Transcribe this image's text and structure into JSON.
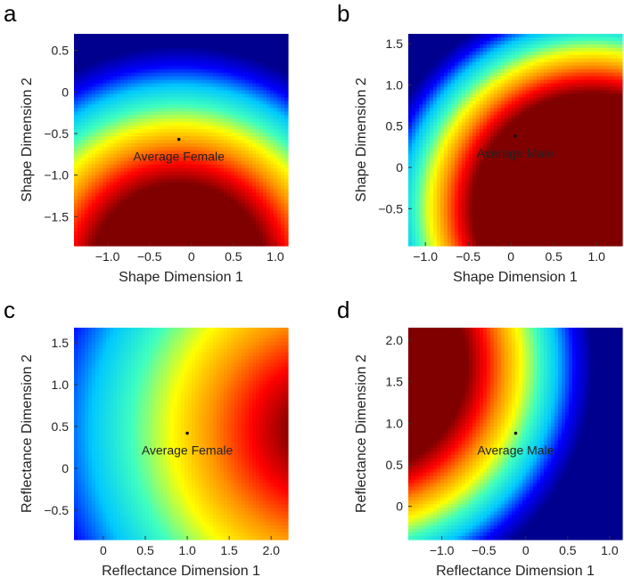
{
  "colormap": [
    "#00008f",
    "#0000ff",
    "#00c8ff",
    "#3fffbf",
    "#ffff00",
    "#ff9000",
    "#ff0000",
    "#800000"
  ],
  "chart_data": [
    {
      "type": "heatmap",
      "panel": "a",
      "xlabel": "Shape Dimension 1",
      "ylabel": "Shape Dimension 2",
      "xlim": [
        -1.4,
        1.15
      ],
      "ylim": [
        -1.85,
        0.7
      ],
      "xticks": [
        -1.0,
        -0.5,
        0,
        0.5,
        1.0
      ],
      "xtick_labels": [
        "−1.0",
        "−0.5",
        "0",
        "0.5",
        "1.0"
      ],
      "yticks": [
        0.5,
        0,
        -0.5,
        -1.0,
        -1.5
      ],
      "ytick_labels": [
        "0.5",
        "0",
        "−0.5",
        "−1.0",
        "−1.5"
      ],
      "field": {
        "center": [
          -0.15,
          -2.15
        ],
        "inner_radius": 1.05,
        "outer_radius": 2.7
      },
      "point": {
        "x": -0.15,
        "y": -0.57
      },
      "annotation": "Average Female"
    },
    {
      "type": "heatmap",
      "panel": "b",
      "xlabel": "Shape Dimension 1",
      "ylabel": "Shape Dimension 2",
      "xlim": [
        -1.2,
        1.3
      ],
      "ylim": [
        -0.95,
        1.62
      ],
      "xticks": [
        -1.0,
        -0.5,
        0,
        0.5,
        1.0
      ],
      "xtick_labels": [
        "−1.0",
        "−0.5",
        "0",
        "0.5",
        "1.0"
      ],
      "yticks": [
        1.5,
        1.0,
        0.5,
        0,
        -0.5
      ],
      "ytick_labels": [
        "1.5",
        "1.0",
        "0.5",
        "0",
        "−0.5"
      ],
      "field": {
        "center": [
          0.95,
          -0.5
        ],
        "inner_radius": 1.4,
        "outer_radius": 2.55
      },
      "point": {
        "x": 0.05,
        "y": 0.38
      },
      "annotation": "Average Male"
    },
    {
      "type": "heatmap",
      "panel": "c",
      "xlabel": "Reflectance Dimension 1",
      "ylabel": "Reflectance Dimension 2",
      "xlim": [
        -0.35,
        2.2
      ],
      "ylim": [
        -0.85,
        1.68
      ],
      "xticks": [
        0,
        0.5,
        1.0,
        1.5,
        2.0
      ],
      "xtick_labels": [
        "0",
        "0.5",
        "1.0",
        "1.5",
        "2.0"
      ],
      "yticks": [
        1.5,
        1.0,
        0.5,
        0,
        -0.5
      ],
      "ytick_labels": [
        "1.5",
        "1.0",
        "0.5",
        "0",
        "−0.5"
      ],
      "field": {
        "center": [
          2.6,
          0.45
        ],
        "inner_radius": 0.35,
        "outer_radius": 3.7
      },
      "point": {
        "x": 1.0,
        "y": 0.42
      },
      "annotation": "Average Female"
    },
    {
      "type": "heatmap",
      "panel": "d",
      "xlabel": "Reflectance Dimension 1",
      "ylabel": "Reflectance Dimension 2",
      "xlim": [
        -1.4,
        1.15
      ],
      "ylim": [
        -0.4,
        2.15
      ],
      "xticks": [
        -1.0,
        -0.5,
        0,
        0.5,
        1.0
      ],
      "xtick_labels": [
        "−1.0",
        "−0.5",
        "0",
        "0.5",
        "1.0"
      ],
      "yticks": [
        2.0,
        1.5,
        1.0,
        0.5,
        0
      ],
      "ytick_labels": [
        "2.0",
        "1.5",
        "1.0",
        "0.5",
        "0"
      ],
      "field": {
        "center": [
          -2.0,
          1.7
        ],
        "inner_radius": 1.3,
        "outer_radius": 2.8
      },
      "point": {
        "x": -0.12,
        "y": 0.88
      },
      "annotation": "Average Male"
    }
  ]
}
